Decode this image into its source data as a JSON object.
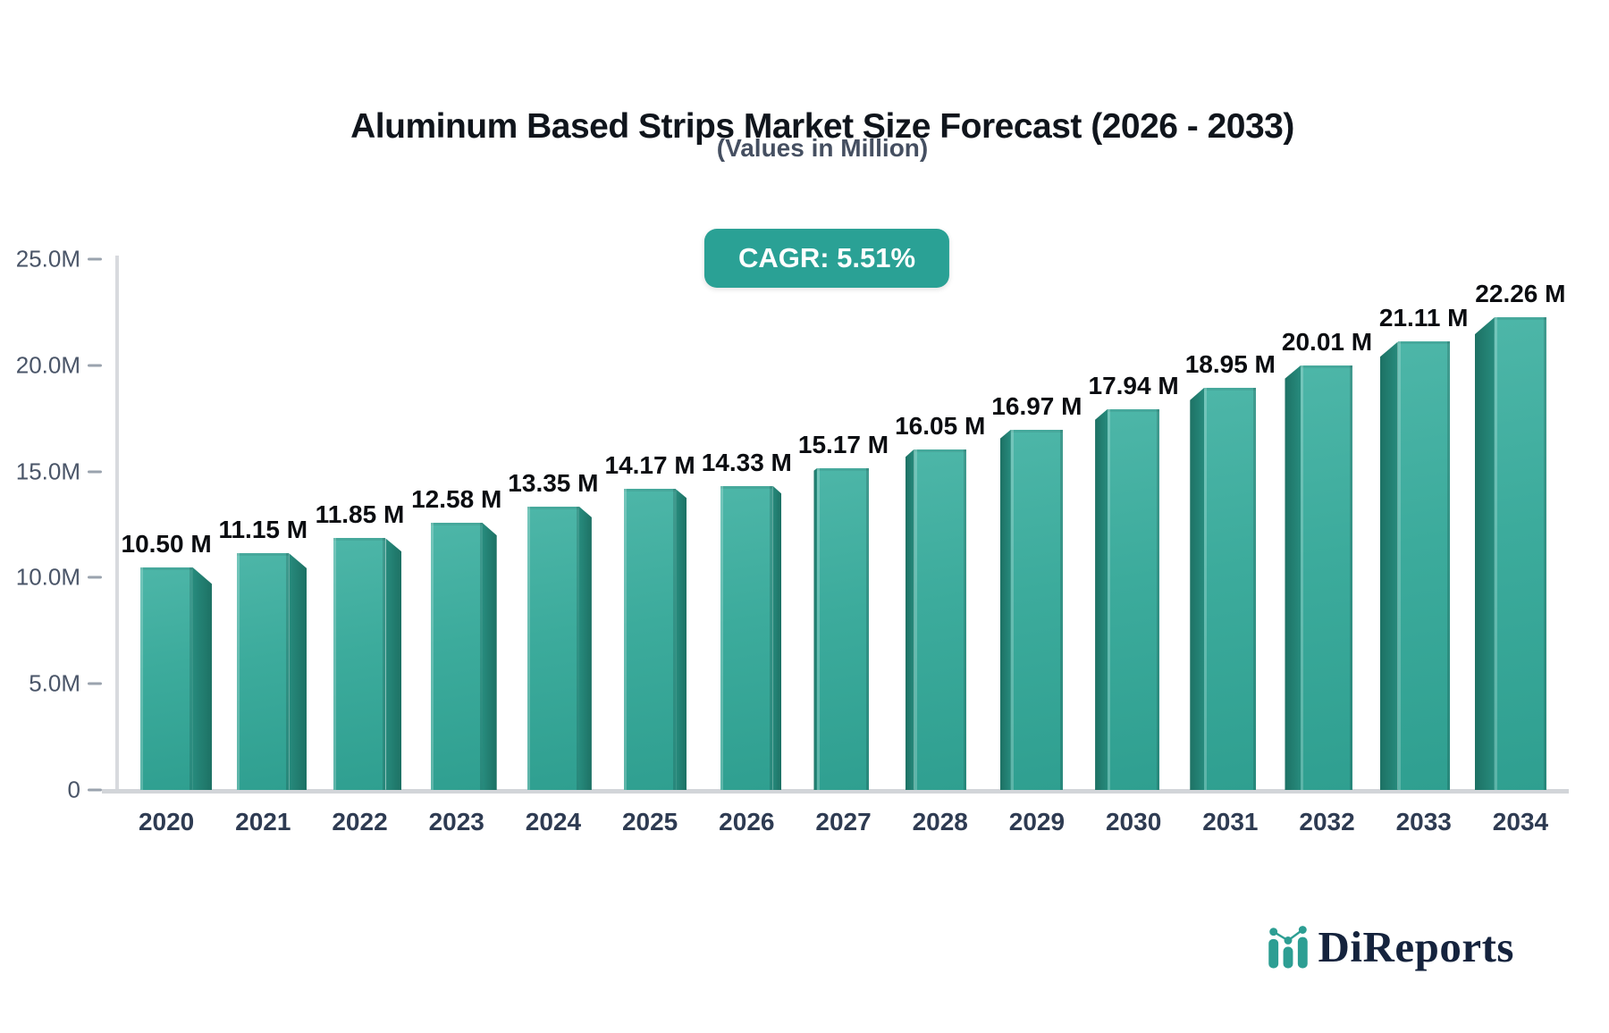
{
  "header": {
    "title": "Aluminum Based Strips Market Size Forecast (2026 - 2033)",
    "subtitle": "(Values in Million)",
    "cagr_badge": "CAGR: 5.51%"
  },
  "footer": {
    "logo_text": "DiReports",
    "logo_icon": "bar-chart-icon"
  },
  "colors": {
    "accent_teal": "#2aa195",
    "bar_face_light": "#4db6a8",
    "bar_face_mid": "#3cab9c",
    "bar_face_dark": "#2f9f90",
    "bar_side_light": "#278b7d",
    "bar_side_dark": "#1d7164",
    "axis_line": "#d8dade",
    "baseline": "#d2d5d9",
    "tick_dash": "#9aa3ae",
    "tick_text": "#4a5568",
    "x_label_text": "#2e3b52",
    "value_label_text": "#0b0d11",
    "title_text": "#10151c",
    "subtitle_text": "#454f61",
    "logo_navy": "#15233d",
    "logo_teal": "#2d9e93"
  },
  "chart_data": {
    "type": "bar",
    "style": "3d-perspective-bars",
    "title": "Aluminum Based Strips Market Size Forecast (2026 - 2033)",
    "subtitle": "(Values in Million)",
    "cagr_pct": 5.51,
    "categories": [
      "2020",
      "2021",
      "2022",
      "2023",
      "2024",
      "2025",
      "2026",
      "2027",
      "2028",
      "2029",
      "2030",
      "2031",
      "2032",
      "2033",
      "2034"
    ],
    "values": [
      10.5,
      11.15,
      11.85,
      12.58,
      13.35,
      14.17,
      14.33,
      15.17,
      16.05,
      16.97,
      17.94,
      18.95,
      20.01,
      21.11,
      22.26
    ],
    "value_labels": [
      "10.50 M",
      "11.15 M",
      "11.85 M",
      "12.58 M",
      "13.35 M",
      "14.17 M",
      "14.33 M",
      "15.17 M",
      "16.05 M",
      "16.97 M",
      "17.94 M",
      "18.95 M",
      "20.01 M",
      "21.11 M",
      "22.26 M"
    ],
    "xlabel": "",
    "ylabel": "",
    "ylim": [
      0,
      25
    ],
    "y_ticks": [
      {
        "label": "25.0M",
        "value": 25
      },
      {
        "label": "20.0M",
        "value": 20
      },
      {
        "label": "15.0M",
        "value": 15
      },
      {
        "label": "10.0M",
        "value": 10
      },
      {
        "label": "5.0M",
        "value": 5
      },
      {
        "label": "0",
        "value": 0
      }
    ],
    "grid": false,
    "legend": false
  }
}
